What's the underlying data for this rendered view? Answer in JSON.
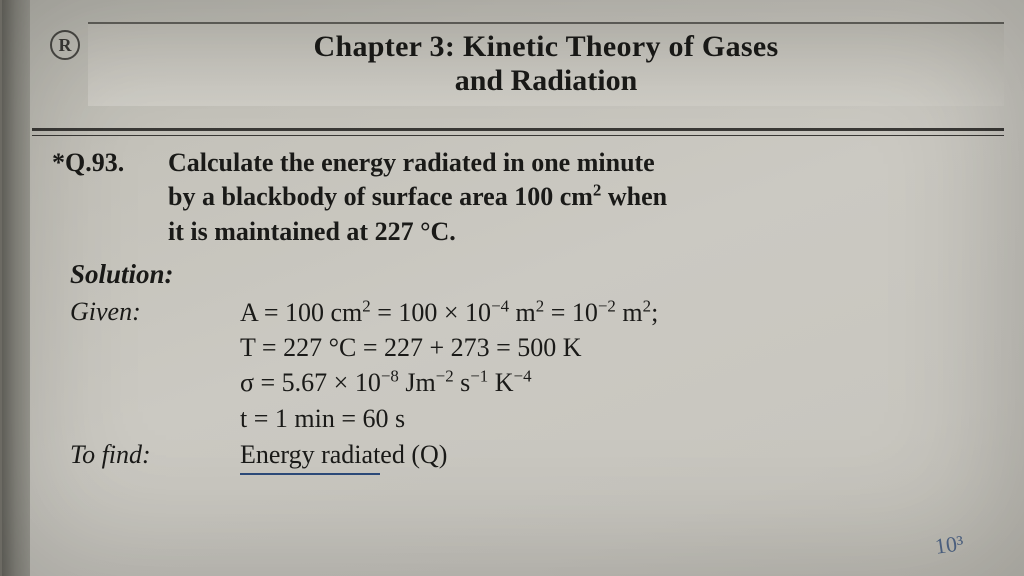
{
  "reg_mark": "R",
  "chapter": {
    "line1": "Chapter 3: Kinetic Theory of Gases",
    "line2": "and Radiation"
  },
  "question": {
    "number": "*Q.93.",
    "line1": "Calculate the energy radiated in one minute",
    "line2_pre": "by a blackbody of surface area 100 cm",
    "line2_sup": "2",
    "line2_post": " when",
    "line3": "it is maintained at 227 °C."
  },
  "solution_label": "Solution:",
  "given_label": "Given:",
  "given": {
    "A_pre": "A = 100 cm",
    "A_sup1": "2",
    "A_mid1": " = 100 × 10",
    "A_sup2": "−4",
    "A_mid2": " m",
    "A_sup3": "2",
    "A_mid3": " = 10",
    "A_sup4": "−2",
    "A_mid4": " m",
    "A_sup5": "2",
    "A_post": ";",
    "T": "T = 227 °C = 227 + 273 = 500 K",
    "sigma_pre": "σ = 5.67 × 10",
    "sigma_sup1": "−8",
    "sigma_mid1": " Jm",
    "sigma_sup2": "−2",
    "sigma_mid2": " s",
    "sigma_sup3": "−1",
    "sigma_mid3": " K",
    "sigma_sup4": "−4",
    "t": "t = 1 min = 60 s"
  },
  "tofind_label": "To find:",
  "tofind_energy": "Energy radiat",
  "tofind_rest": "ed (Q)",
  "scribble": "10³"
}
